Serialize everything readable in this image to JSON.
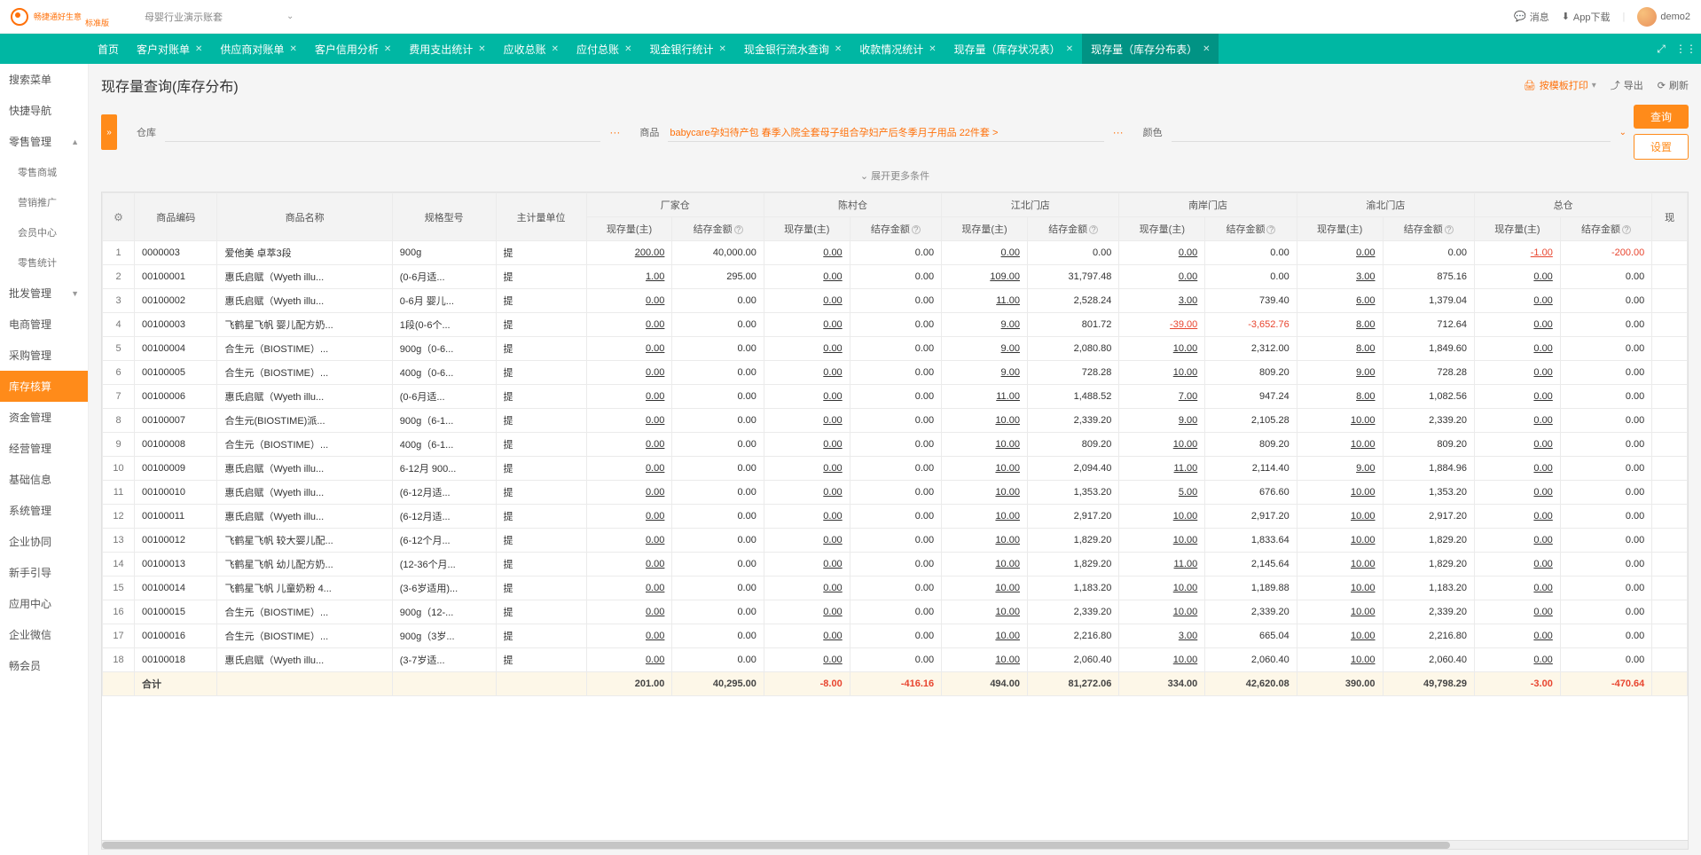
{
  "brand": {
    "name": "畅捷通好生意",
    "edition": "标准版"
  },
  "top": {
    "context": "母婴行业演示账套",
    "msg": "消息",
    "download": "App下载",
    "user": "demo2"
  },
  "tabs": {
    "items": [
      {
        "label": "首页",
        "closable": false
      },
      {
        "label": "客户对账单",
        "closable": true
      },
      {
        "label": "供应商对账单",
        "closable": true
      },
      {
        "label": "客户信用分析",
        "closable": true
      },
      {
        "label": "费用支出统计",
        "closable": true
      },
      {
        "label": "应收总账",
        "closable": true
      },
      {
        "label": "应付总账",
        "closable": true
      },
      {
        "label": "现金银行统计",
        "closable": true
      },
      {
        "label": "现金银行流水查询",
        "closable": true
      },
      {
        "label": "收款情况统计",
        "closable": true
      },
      {
        "label": "现存量（库存状况表）",
        "closable": true
      },
      {
        "label": "现存量（库存分布表）",
        "closable": true,
        "active": true
      }
    ]
  },
  "sidebar": {
    "items": [
      {
        "label": "搜索菜单"
      },
      {
        "label": "快捷导航"
      },
      {
        "label": "零售管理",
        "arrow": "▲"
      },
      {
        "label": "零售商城",
        "sub": true
      },
      {
        "label": "营销推广",
        "sub": true
      },
      {
        "label": "会员中心",
        "sub": true
      },
      {
        "label": "零售统计",
        "sub": true
      },
      {
        "label": "批发管理",
        "arrow": "▼"
      },
      {
        "label": "电商管理"
      },
      {
        "label": "采购管理"
      },
      {
        "label": "库存核算",
        "active": true
      },
      {
        "label": "资金管理"
      },
      {
        "label": "经营管理"
      },
      {
        "label": "基础信息"
      },
      {
        "label": "系统管理"
      },
      {
        "label": "企业协同"
      },
      {
        "label": "新手引导"
      },
      {
        "label": "应用中心"
      },
      {
        "label": "企业微信"
      },
      {
        "label": "畅会员"
      }
    ]
  },
  "page": {
    "title": "现存量查询(库存分布)",
    "print": "按模板打印",
    "export": "导出",
    "refresh": "刷新"
  },
  "filters": {
    "warehouse_label": "仓库",
    "warehouse_value": "",
    "product_label": "商品",
    "product_value": "babycare孕妇待产包 春季入院全套母子组合孕妇产后冬季月子用品 22件套 >",
    "color_label": "颜色",
    "color_value": "",
    "search": "查询",
    "settings": "设置",
    "more": "展开更多条件"
  },
  "table": {
    "fixed_headers": [
      "商品编码",
      "商品名称",
      "规格型号",
      "主计量单位"
    ],
    "gear": "⚙",
    "warehouses": [
      "厂家仓",
      "陈村仓",
      "江北门店",
      "南岸门店",
      "渝北门店",
      "总仓"
    ],
    "qty_h": "现存量(主)",
    "amt_h": "结存金额",
    "extra_h": "现",
    "rows": [
      {
        "i": 1,
        "code": "0000003",
        "name": "爱他美 卓萃3段",
        "spec": "900g",
        "unit": "提",
        "cells": [
          {
            "q": "200.00",
            "a": "40,000.00"
          },
          {
            "q": "0.00",
            "a": "0.00"
          },
          {
            "q": "0.00",
            "a": "0.00"
          },
          {
            "q": "0.00",
            "a": "0.00"
          },
          {
            "q": "0.00",
            "a": "0.00"
          },
          {
            "q": "-1.00",
            "a": "-200.00",
            "neg": true
          }
        ]
      },
      {
        "i": 2,
        "code": "00100001",
        "name": "惠氏启赋（Wyeth illu...",
        "spec": "(0-6月适...",
        "unit": "提",
        "cells": [
          {
            "q": "1.00",
            "a": "295.00"
          },
          {
            "q": "0.00",
            "a": "0.00"
          },
          {
            "q": "109.00",
            "a": "31,797.48"
          },
          {
            "q": "0.00",
            "a": "0.00"
          },
          {
            "q": "3.00",
            "a": "875.16"
          },
          {
            "q": "0.00",
            "a": "0.00"
          }
        ]
      },
      {
        "i": 3,
        "code": "00100002",
        "name": "惠氏启赋（Wyeth illu...",
        "spec": "0-6月 婴儿...",
        "unit": "提",
        "cells": [
          {
            "q": "0.00",
            "a": "0.00"
          },
          {
            "q": "0.00",
            "a": "0.00"
          },
          {
            "q": "11.00",
            "a": "2,528.24"
          },
          {
            "q": "3.00",
            "a": "739.40"
          },
          {
            "q": "6.00",
            "a": "1,379.04"
          },
          {
            "q": "0.00",
            "a": "0.00"
          }
        ]
      },
      {
        "i": 4,
        "code": "00100003",
        "name": "飞鹤星飞帆 婴儿配方奶...",
        "spec": "1段(0-6个...",
        "unit": "提",
        "cells": [
          {
            "q": "0.00",
            "a": "0.00"
          },
          {
            "q": "0.00",
            "a": "0.00"
          },
          {
            "q": "9.00",
            "a": "801.72"
          },
          {
            "q": "-39.00",
            "a": "-3,652.76",
            "neg": true
          },
          {
            "q": "8.00",
            "a": "712.64"
          },
          {
            "q": "0.00",
            "a": "0.00"
          }
        ]
      },
      {
        "i": 5,
        "code": "00100004",
        "name": "合生元（BIOSTIME）...",
        "spec": "900g（0-6...",
        "unit": "提",
        "cells": [
          {
            "q": "0.00",
            "a": "0.00"
          },
          {
            "q": "0.00",
            "a": "0.00"
          },
          {
            "q": "9.00",
            "a": "2,080.80"
          },
          {
            "q": "10.00",
            "a": "2,312.00"
          },
          {
            "q": "8.00",
            "a": "1,849.60"
          },
          {
            "q": "0.00",
            "a": "0.00"
          }
        ]
      },
      {
        "i": 6,
        "code": "00100005",
        "name": "合生元（BIOSTIME）...",
        "spec": "400g（0-6...",
        "unit": "提",
        "cells": [
          {
            "q": "0.00",
            "a": "0.00"
          },
          {
            "q": "0.00",
            "a": "0.00"
          },
          {
            "q": "9.00",
            "a": "728.28"
          },
          {
            "q": "10.00",
            "a": "809.20"
          },
          {
            "q": "9.00",
            "a": "728.28"
          },
          {
            "q": "0.00",
            "a": "0.00"
          }
        ]
      },
      {
        "i": 7,
        "code": "00100006",
        "name": "惠氏启赋（Wyeth illu...",
        "spec": "(0-6月适...",
        "unit": "提",
        "cells": [
          {
            "q": "0.00",
            "a": "0.00"
          },
          {
            "q": "0.00",
            "a": "0.00"
          },
          {
            "q": "11.00",
            "a": "1,488.52"
          },
          {
            "q": "7.00",
            "a": "947.24"
          },
          {
            "q": "8.00",
            "a": "1,082.56"
          },
          {
            "q": "0.00",
            "a": "0.00"
          }
        ]
      },
      {
        "i": 8,
        "code": "00100007",
        "name": "合生元(BIOSTIME)派...",
        "spec": "900g（6-1...",
        "unit": "提",
        "cells": [
          {
            "q": "0.00",
            "a": "0.00"
          },
          {
            "q": "0.00",
            "a": "0.00"
          },
          {
            "q": "10.00",
            "a": "2,339.20"
          },
          {
            "q": "9.00",
            "a": "2,105.28"
          },
          {
            "q": "10.00",
            "a": "2,339.20"
          },
          {
            "q": "0.00",
            "a": "0.00"
          }
        ]
      },
      {
        "i": 9,
        "code": "00100008",
        "name": "合生元（BIOSTIME）...",
        "spec": "400g（6-1...",
        "unit": "提",
        "cells": [
          {
            "q": "0.00",
            "a": "0.00"
          },
          {
            "q": "0.00",
            "a": "0.00"
          },
          {
            "q": "10.00",
            "a": "809.20"
          },
          {
            "q": "10.00",
            "a": "809.20"
          },
          {
            "q": "10.00",
            "a": "809.20"
          },
          {
            "q": "0.00",
            "a": "0.00"
          }
        ]
      },
      {
        "i": 10,
        "code": "00100009",
        "name": "惠氏启赋（Wyeth illu...",
        "spec": "6-12月 900...",
        "unit": "提",
        "cells": [
          {
            "q": "0.00",
            "a": "0.00"
          },
          {
            "q": "0.00",
            "a": "0.00"
          },
          {
            "q": "10.00",
            "a": "2,094.40"
          },
          {
            "q": "11.00",
            "a": "2,114.40"
          },
          {
            "q": "9.00",
            "a": "1,884.96"
          },
          {
            "q": "0.00",
            "a": "0.00"
          }
        ]
      },
      {
        "i": 11,
        "code": "00100010",
        "name": "惠氏启赋（Wyeth illu...",
        "spec": "(6-12月适...",
        "unit": "提",
        "cells": [
          {
            "q": "0.00",
            "a": "0.00"
          },
          {
            "q": "0.00",
            "a": "0.00"
          },
          {
            "q": "10.00",
            "a": "1,353.20"
          },
          {
            "q": "5.00",
            "a": "676.60"
          },
          {
            "q": "10.00",
            "a": "1,353.20"
          },
          {
            "q": "0.00",
            "a": "0.00"
          }
        ]
      },
      {
        "i": 12,
        "code": "00100011",
        "name": "惠氏启赋（Wyeth illu...",
        "spec": "(6-12月适...",
        "unit": "提",
        "cells": [
          {
            "q": "0.00",
            "a": "0.00"
          },
          {
            "q": "0.00",
            "a": "0.00"
          },
          {
            "q": "10.00",
            "a": "2,917.20"
          },
          {
            "q": "10.00",
            "a": "2,917.20"
          },
          {
            "q": "10.00",
            "a": "2,917.20"
          },
          {
            "q": "0.00",
            "a": "0.00"
          }
        ]
      },
      {
        "i": 13,
        "code": "00100012",
        "name": "飞鹤星飞帆 较大婴儿配...",
        "spec": "(6-12个月...",
        "unit": "提",
        "cells": [
          {
            "q": "0.00",
            "a": "0.00"
          },
          {
            "q": "0.00",
            "a": "0.00"
          },
          {
            "q": "10.00",
            "a": "1,829.20"
          },
          {
            "q": "10.00",
            "a": "1,833.64"
          },
          {
            "q": "10.00",
            "a": "1,829.20"
          },
          {
            "q": "0.00",
            "a": "0.00"
          }
        ]
      },
      {
        "i": 14,
        "code": "00100013",
        "name": "飞鹤星飞帆 幼儿配方奶...",
        "spec": "(12-36个月...",
        "unit": "提",
        "cells": [
          {
            "q": "0.00",
            "a": "0.00"
          },
          {
            "q": "0.00",
            "a": "0.00"
          },
          {
            "q": "10.00",
            "a": "1,829.20"
          },
          {
            "q": "11.00",
            "a": "2,145.64"
          },
          {
            "q": "10.00",
            "a": "1,829.20"
          },
          {
            "q": "0.00",
            "a": "0.00"
          }
        ]
      },
      {
        "i": 15,
        "code": "00100014",
        "name": "飞鹤星飞帆 儿童奶粉 4...",
        "spec": "(3-6岁适用)...",
        "unit": "提",
        "cells": [
          {
            "q": "0.00",
            "a": "0.00"
          },
          {
            "q": "0.00",
            "a": "0.00"
          },
          {
            "q": "10.00",
            "a": "1,183.20"
          },
          {
            "q": "10.00",
            "a": "1,189.88"
          },
          {
            "q": "10.00",
            "a": "1,183.20"
          },
          {
            "q": "0.00",
            "a": "0.00"
          }
        ]
      },
      {
        "i": 16,
        "code": "00100015",
        "name": "合生元（BIOSTIME）...",
        "spec": "900g（12-...",
        "unit": "提",
        "cells": [
          {
            "q": "0.00",
            "a": "0.00"
          },
          {
            "q": "0.00",
            "a": "0.00"
          },
          {
            "q": "10.00",
            "a": "2,339.20"
          },
          {
            "q": "10.00",
            "a": "2,339.20"
          },
          {
            "q": "10.00",
            "a": "2,339.20"
          },
          {
            "q": "0.00",
            "a": "0.00"
          }
        ]
      },
      {
        "i": 17,
        "code": "00100016",
        "name": "合生元（BIOSTIME）...",
        "spec": "900g（3岁...",
        "unit": "提",
        "cells": [
          {
            "q": "0.00",
            "a": "0.00"
          },
          {
            "q": "0.00",
            "a": "0.00"
          },
          {
            "q": "10.00",
            "a": "2,216.80"
          },
          {
            "q": "3.00",
            "a": "665.04"
          },
          {
            "q": "10.00",
            "a": "2,216.80"
          },
          {
            "q": "0.00",
            "a": "0.00"
          }
        ]
      },
      {
        "i": 18,
        "code": "00100018",
        "name": "惠氏启赋（Wyeth illu...",
        "spec": "(3-7岁适...",
        "unit": "提",
        "cells": [
          {
            "q": "0.00",
            "a": "0.00"
          },
          {
            "q": "0.00",
            "a": "0.00"
          },
          {
            "q": "10.00",
            "a": "2,060.40"
          },
          {
            "q": "10.00",
            "a": "2,060.40"
          },
          {
            "q": "10.00",
            "a": "2,060.40"
          },
          {
            "q": "0.00",
            "a": "0.00"
          }
        ]
      }
    ],
    "total": {
      "label": "合计",
      "cells": [
        {
          "q": "201.00",
          "a": "40,295.00"
        },
        {
          "q": "-8.00",
          "a": "-416.16",
          "neg": true
        },
        {
          "q": "494.00",
          "a": "81,272.06"
        },
        {
          "q": "334.00",
          "a": "42,620.08"
        },
        {
          "q": "390.00",
          "a": "49,798.29"
        },
        {
          "q": "-3.00",
          "a": "-470.64",
          "neg": true
        }
      ]
    }
  }
}
